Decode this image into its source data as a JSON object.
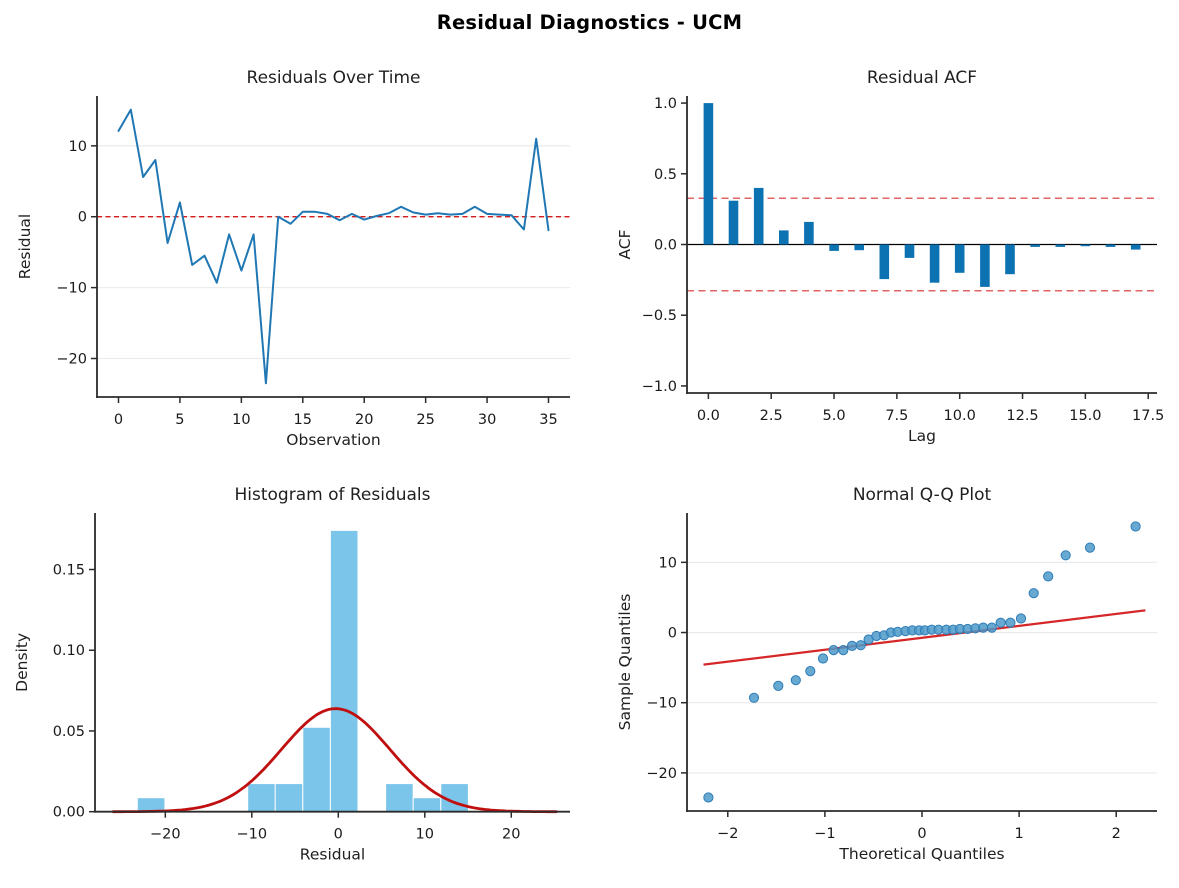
{
  "figure_title": "Residual Diagnostics - UCM",
  "chart_data": [
    {
      "type": "line",
      "title": "Residuals Over Time",
      "xlabel": "Observation",
      "ylabel": "Residual",
      "x_is_index": true,
      "values": [
        12.1,
        15.1,
        5.6,
        8.0,
        -3.7,
        2.0,
        -6.8,
        -5.5,
        -9.3,
        -2.5,
        -7.6,
        -2.5,
        -23.5,
        0.0,
        -1.0,
        0.7,
        0.7,
        0.4,
        -0.5,
        0.4,
        -0.4,
        0.1,
        0.5,
        1.4,
        0.6,
        0.3,
        0.5,
        0.3,
        0.4,
        1.4,
        0.4,
        0.3,
        0.2,
        -1.8,
        11.0,
        -1.9
      ],
      "xlim": [
        -1.75,
        36.75
      ],
      "ylim": [
        -25.43,
        17.03
      ],
      "xticks": [
        0,
        5,
        10,
        15,
        20,
        25,
        30,
        35
      ],
      "xtick_labels": [
        "0",
        "5",
        "10",
        "15",
        "20",
        "25",
        "30",
        "35"
      ],
      "yticks": [
        10,
        0,
        -10,
        -20
      ],
      "ytick_labels": [
        "10",
        "0",
        "−10",
        "−20"
      ],
      "grid_y": true,
      "zero_line": {
        "y": 0,
        "style": "dashed",
        "color": "#d40000"
      },
      "line_color": "#1f77b4"
    },
    {
      "type": "bar",
      "title": "Residual ACF",
      "xlabel": "Lag",
      "ylabel": "ACF",
      "lags": [
        0,
        1,
        2,
        3,
        4,
        5,
        6,
        7,
        8,
        9,
        10,
        11,
        12,
        13,
        14,
        15,
        16,
        17
      ],
      "values": [
        1.0,
        0.31,
        0.4,
        0.1,
        0.16,
        -0.045,
        -0.04,
        -0.245,
        -0.095,
        -0.27,
        -0.2,
        -0.3,
        -0.21,
        -0.017,
        -0.017,
        -0.012,
        -0.017,
        -0.036
      ],
      "conf_bound": 0.327,
      "xlim": [
        -0.85,
        17.85
      ],
      "ylim": [
        -1.05,
        1.05
      ],
      "xticks": [
        0,
        2.5,
        5,
        7.5,
        10,
        12.5,
        15,
        17.5
      ],
      "xtick_labels": [
        "0.0",
        "2.5",
        "5.0",
        "7.5",
        "10.0",
        "12.5",
        "15.0",
        "17.5"
      ],
      "yticks": [
        1.0,
        0.5,
        0.0,
        -0.5,
        -1.0
      ],
      "ytick_labels": [
        "1.0",
        "0.5",
        "0.0",
        "−0.5",
        "−1.0"
      ],
      "grid_y": false,
      "bar_color": "#0d72b2",
      "conf_color": "#e06464",
      "zero_line_color": "#000000"
    },
    {
      "type": "histogram",
      "title": "Histogram of Residuals",
      "xlabel": "Residual",
      "ylabel": "Density",
      "bin_start": -23.24,
      "bin_width": 3.19,
      "densities": [
        0.0087,
        0,
        0,
        0,
        0.0174,
        0.0174,
        0.0523,
        0.1742,
        0,
        0.0174,
        0.0087,
        0.0174
      ],
      "normal_curve": {
        "mean": -0.3,
        "sd": 6.25,
        "x_range": [
          -26.0,
          25.2
        ],
        "color": "#c00f0f"
      },
      "xlim": [
        -28.13,
        26.79
      ],
      "ylim": [
        0,
        0.185
      ],
      "xticks": [
        -20,
        -10,
        0,
        10,
        20
      ],
      "xtick_labels": [
        "−20",
        "−10",
        "0",
        "10",
        "20"
      ],
      "yticks": [
        0.0,
        0.05,
        0.1,
        0.15
      ],
      "ytick_labels": [
        "0.00",
        "0.05",
        "0.10",
        "0.15"
      ],
      "grid_y": false,
      "bar_color": "#7bc4ea"
    },
    {
      "type": "scatter",
      "title": "Normal Q-Q Plot",
      "xlabel": "Theoretical Quantiles",
      "ylabel": "Sample Quantiles",
      "theoretical": [
        -2.2,
        -1.73,
        -1.48,
        -1.3,
        -1.15,
        -1.02,
        -0.91,
        -0.81,
        -0.72,
        -0.63,
        -0.55,
        -0.47,
        -0.39,
        -0.32,
        -0.25,
        -0.17,
        -0.1,
        -0.03,
        0.03,
        0.1,
        0.17,
        0.25,
        0.32,
        0.39,
        0.47,
        0.55,
        0.63,
        0.72,
        0.81,
        0.91,
        1.02,
        1.15,
        1.3,
        1.48,
        1.73,
        2.2
      ],
      "sample": [
        -23.5,
        -9.3,
        -7.6,
        -6.8,
        -5.5,
        -3.7,
        -2.5,
        -2.5,
        -1.9,
        -1.8,
        -1.0,
        -0.5,
        -0.4,
        0.0,
        0.1,
        0.2,
        0.3,
        0.3,
        0.3,
        0.4,
        0.4,
        0.4,
        0.4,
        0.5,
        0.5,
        0.6,
        0.7,
        0.7,
        1.4,
        1.4,
        2.0,
        5.6,
        8.0,
        11.0,
        12.1,
        15.1
      ],
      "fit_line": {
        "x1": -2.25,
        "y1": -4.58,
        "x2": 2.3,
        "y2": 3.16,
        "color": "#d62728"
      },
      "xlim": [
        -2.42,
        2.42
      ],
      "ylim": [
        -25.43,
        17.03
      ],
      "xticks": [
        -2,
        -1,
        0,
        1,
        2
      ],
      "xtick_labels": [
        "−2",
        "−1",
        "0",
        "1",
        "2"
      ],
      "yticks": [
        10,
        0,
        -10,
        -20
      ],
      "ytick_labels": [
        "10",
        "0",
        "−10",
        "−20"
      ],
      "grid_y": true,
      "dot_color": "#4e9ac9",
      "dot_edge": "#2e7cb8"
    }
  ]
}
